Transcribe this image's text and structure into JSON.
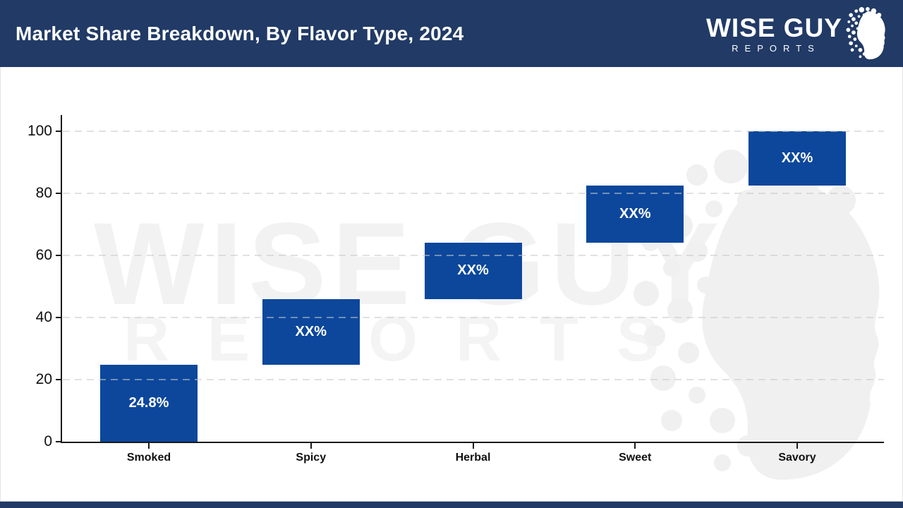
{
  "header": {
    "title": "Market Share Breakdown, By Flavor Type, 2024",
    "logo": {
      "primary": "WISE GUY",
      "secondary": "REPORTS"
    }
  },
  "watermark": {
    "line1": "WISE GUY",
    "line2": "REPORTS"
  },
  "footer": {},
  "chart_data": {
    "type": "bar",
    "subtype": "waterfall",
    "title": "Market Share Breakdown, By Flavor Type, 2024",
    "categories": [
      "Smoked",
      "Spicy",
      "Herbal",
      "Sweet",
      "Savory"
    ],
    "segments": [
      {
        "category": "Smoked",
        "start": 0,
        "end": 24.8,
        "label": "24.8%"
      },
      {
        "category": "Spicy",
        "start": 24.8,
        "end": 46,
        "label": "XX%"
      },
      {
        "category": "Herbal",
        "start": 46,
        "end": 64,
        "label": "XX%"
      },
      {
        "category": "Sweet",
        "start": 64,
        "end": 82.5,
        "label": "XX%"
      },
      {
        "category": "Savory",
        "start": 82.5,
        "end": 100,
        "label": "XX%"
      }
    ],
    "xlabel": "",
    "ylabel": "",
    "ylim": [
      0,
      100
    ],
    "yticks": [
      0,
      20,
      40,
      60,
      80,
      100
    ],
    "grid": {
      "horizontal": true,
      "style": "dashed",
      "over_bars": true
    },
    "legend": null,
    "colors": {
      "bar": "#0c479c",
      "bar_label": "#ffffff",
      "axis": "#1a1a1a",
      "grid": "#c8c8c8",
      "header_bg": "#213a66",
      "watermark": "#f2f2f2"
    }
  }
}
